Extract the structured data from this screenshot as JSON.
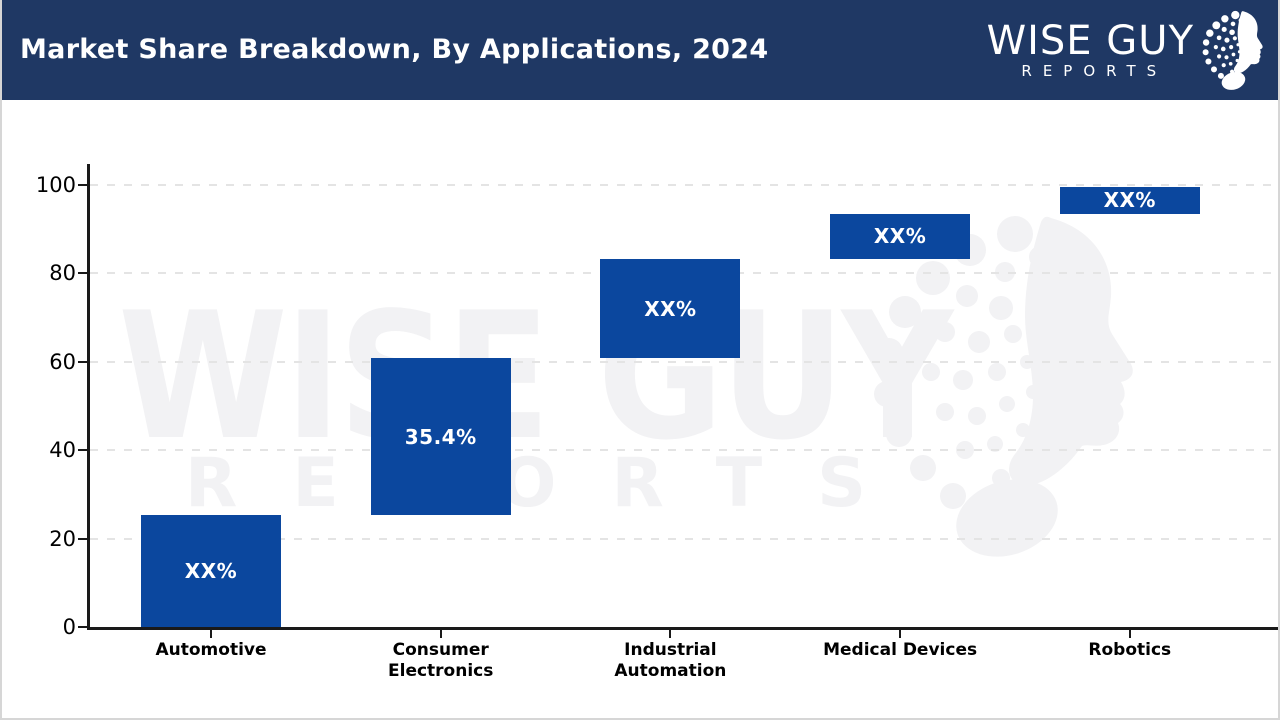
{
  "header": {
    "title": "Market Share Breakdown, By Applications, 2024",
    "brand": {
      "name_top": "WISE GUY",
      "name_bottom": "REPORTS"
    }
  },
  "watermark": {
    "text_top": "WISE GUY",
    "text_bottom": "REPORTS"
  },
  "colors": {
    "header_bg": "#1f3864",
    "bar": "#0b479e",
    "grid": "#e4e4e4",
    "axis": "#1a1a1a",
    "watermark": "#f2f2f4",
    "bar_label": "#ffffff"
  },
  "chart_data": {
    "type": "bar",
    "subtype": "waterfall",
    "title": "Market Share Breakdown, By Applications, 2024",
    "categories": [
      "Automotive",
      "Consumer Electronics",
      "Industrial Automation",
      "Medical Devices",
      "Robotics"
    ],
    "xtick_lines": [
      [
        "Automotive"
      ],
      [
        "Consumer",
        "Electronics"
      ],
      [
        "Industrial",
        "Automation"
      ],
      [
        "Medical Devices"
      ],
      [
        "Robotics"
      ]
    ],
    "segments": [
      {
        "category": "Automotive",
        "start": 0,
        "end": 25.3,
        "label": "XX%"
      },
      {
        "category": "Consumer Electronics",
        "start": 25.3,
        "end": 60.7,
        "label": "35.4%"
      },
      {
        "category": "Industrial Automation",
        "start": 60.7,
        "end": 83.2,
        "label": "XX%"
      },
      {
        "category": "Medical Devices",
        "start": 83.2,
        "end": 93.4,
        "label": "XX%"
      },
      {
        "category": "Robotics",
        "start": 93.4,
        "end": 99.5,
        "label": "XX%"
      }
    ],
    "yticks": [
      0,
      20,
      40,
      60,
      80,
      100
    ],
    "ylim": [
      0,
      104.7
    ],
    "xlabel": "",
    "ylabel": "",
    "grid": "horizontal-dashed",
    "legend": "none"
  }
}
